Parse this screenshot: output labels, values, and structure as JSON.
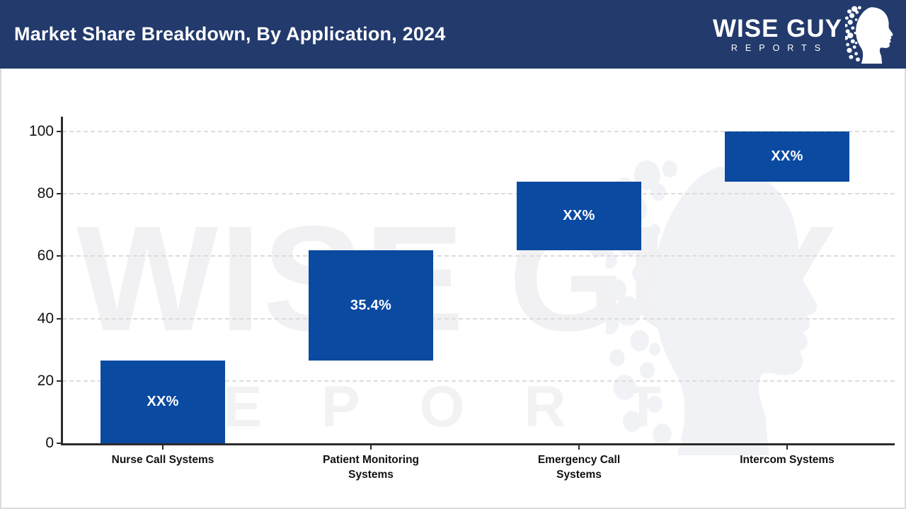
{
  "header": {
    "title": "Market Share Breakdown, By Application, 2024",
    "logo": {
      "wordmark": "WISE GUY",
      "tagline": "REPORTS"
    }
  },
  "watermark": {
    "wordmark": "WISE GUY",
    "tagline": "REPORTS"
  },
  "chart_data": {
    "type": "bar",
    "subtype": "floating-segment-waterfall",
    "title": "Market Share Breakdown, By Application, 2024",
    "categories": [
      "Nurse Call Systems",
      "Patient Monitoring Systems",
      "Emergency Call Systems",
      "Intercom Systems"
    ],
    "bars": [
      {
        "category": "Nurse Call Systems",
        "start": 0,
        "end": 26.5,
        "label": "XX%"
      },
      {
        "category": "Patient Monitoring Systems",
        "start": 26.5,
        "end": 61.9,
        "label": "35.4%"
      },
      {
        "category": "Emergency Call Systems",
        "start": 61.9,
        "end": 83.9,
        "label": "XX%"
      },
      {
        "category": "Intercom Systems",
        "start": 83.9,
        "end": 100,
        "label": "XX%"
      }
    ],
    "y_ticks": [
      0,
      20,
      40,
      60,
      80,
      100
    ],
    "ylim": [
      0,
      105
    ],
    "xlabel": "",
    "ylabel": "",
    "grid": "horizontal-dashed",
    "legend": "none"
  },
  "colors": {
    "header_bg": "#223a6c",
    "bar": "#0a4aa0",
    "bar_label": "#ffffff",
    "axis": "#2b2b2b",
    "gridline": "#dcdcdc",
    "watermark": "#f1f1f3"
  }
}
